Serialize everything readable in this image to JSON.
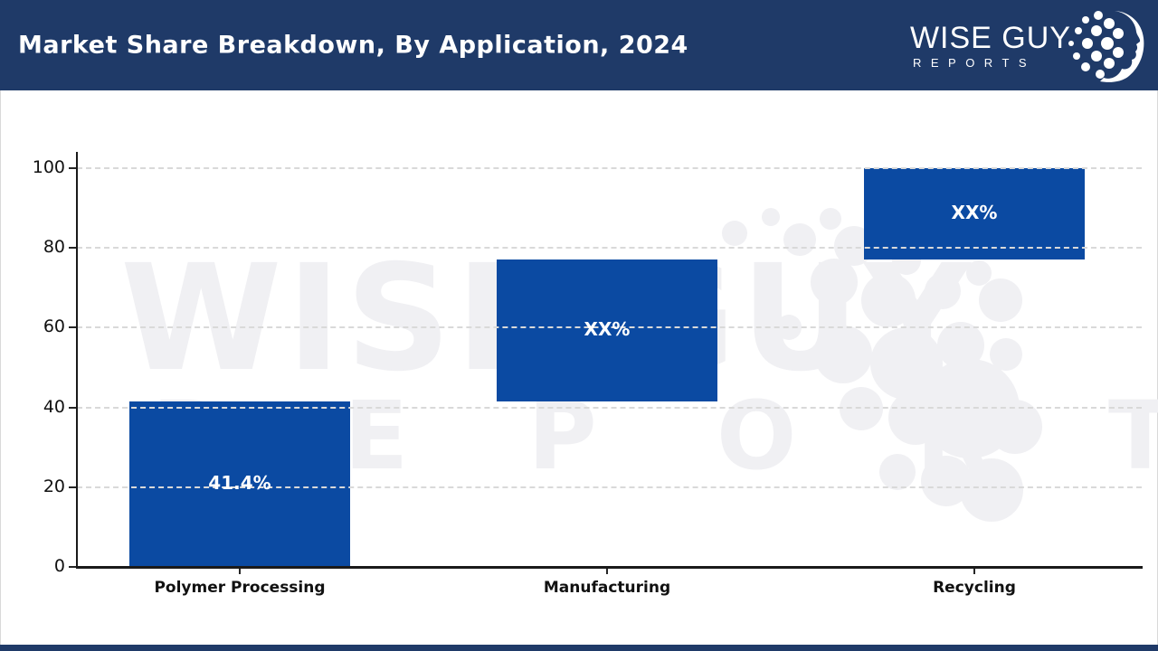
{
  "header": {
    "title": "Market Share Breakdown, By Application, 2024",
    "bg_color": "#1f3a68",
    "logo": {
      "line1": "WISE GUY",
      "line2": "REPORTS"
    }
  },
  "watermark": {
    "line1": "WISE GUY",
    "line2": "R E P O R T S"
  },
  "chart_data": {
    "type": "bar",
    "subtype": "stepped-waterfall",
    "title": "Market Share Breakdown, By Application, 2024",
    "categories": [
      "Polymer Processing",
      "Manufacturing",
      "Recycling"
    ],
    "segments": [
      {
        "category": "Polymer Processing",
        "start": 0,
        "end": 41.4,
        "label": "41.4%"
      },
      {
        "category": "Manufacturing",
        "start": 41.4,
        "end": 77,
        "label": "XX%"
      },
      {
        "category": "Recycling",
        "start": 77,
        "end": 100,
        "label": "XX%"
      }
    ],
    "values_displayed": [
      "41.4%",
      "XX%",
      "XX%"
    ],
    "bar_color": "#0b4aa2",
    "label_color": "#ffffff",
    "xlabel": "",
    "ylabel": "",
    "ylim": [
      0,
      100
    ],
    "yticks": [
      0,
      20,
      40,
      60,
      80,
      100
    ],
    "grid": "horizontal dashed, drawn over bars",
    "grid_color": "#d9d9d9",
    "axis_color": "#1a1a1a",
    "legend": "none"
  }
}
